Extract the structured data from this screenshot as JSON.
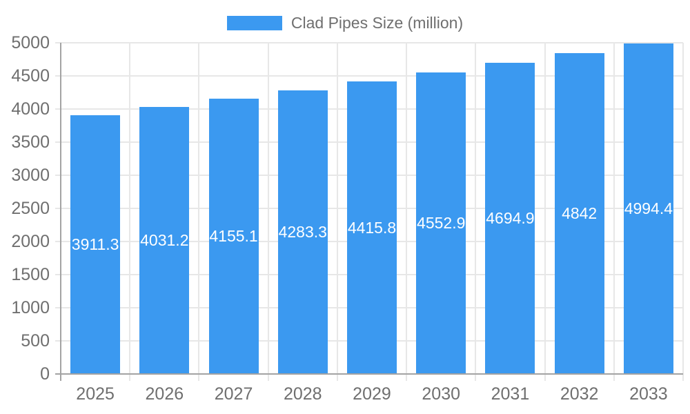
{
  "chart_data": {
    "type": "bar",
    "title": "",
    "legend_label": "Clad Pipes Size (million)",
    "legend_position": "top",
    "categories": [
      "2025",
      "2026",
      "2027",
      "2028",
      "2029",
      "2030",
      "2031",
      "2032",
      "2033"
    ],
    "values": [
      3911.3,
      4031.2,
      4155.1,
      4283.3,
      4415.8,
      4552.9,
      4694.9,
      4842,
      4994.4
    ],
    "value_labels": [
      "3911.3",
      "4031.2",
      "4155.1",
      "4283.3",
      "4415.8",
      "4552.9",
      "4694.9",
      "4842",
      "4994.4"
    ],
    "xlabel": "",
    "ylabel": "",
    "ylim": [
      0,
      5000
    ],
    "ytick_step": 500,
    "ytick_labels": [
      "0",
      "500",
      "1000",
      "1500",
      "2000",
      "2500",
      "3000",
      "3500",
      "4000",
      "4500",
      "5000"
    ],
    "grid": true,
    "colors": {
      "bar": "#3B99F0",
      "bar_label_text": "#FFFFFF",
      "axis_text": "#6F6F6F",
      "legend_text": "#6F6F6F",
      "gridline": "#E7E7E7",
      "axis_line": "#A3A3A3",
      "background": "#FFFFFF"
    }
  }
}
